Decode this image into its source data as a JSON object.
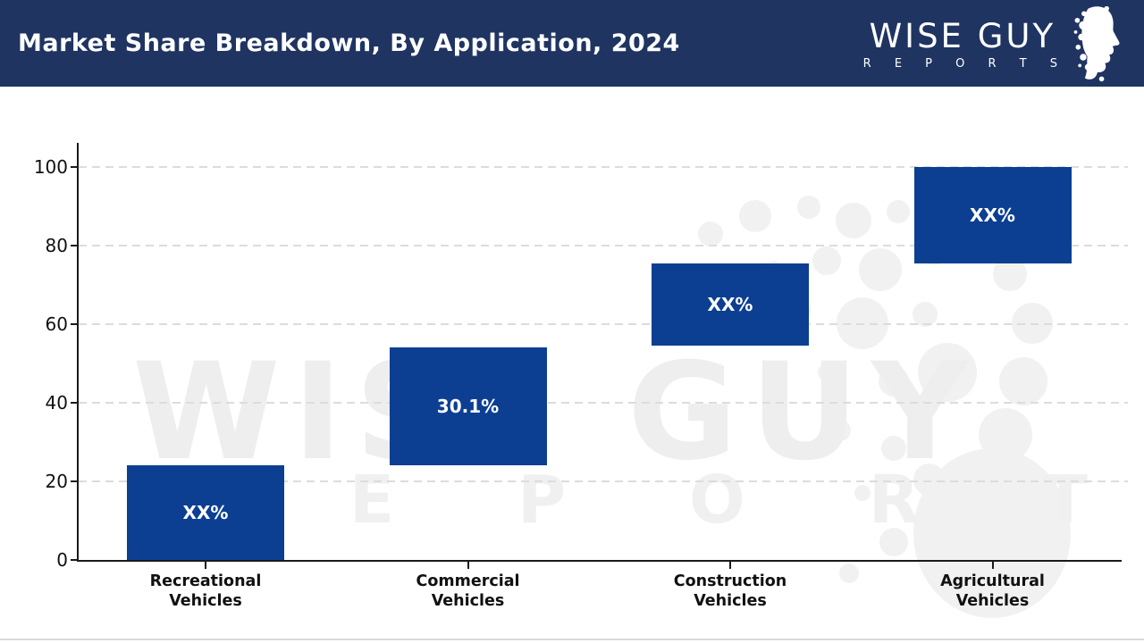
{
  "header": {
    "title": "Market Share Breakdown, By Application, 2024",
    "logo": {
      "line1": "WISE GUY",
      "line2": "R E P O R T S"
    },
    "bg_color": "#1F3461",
    "text_color": "#FFFFFF"
  },
  "watermark": {
    "line1": "WISE GUY",
    "line2": "R E P O R T S"
  },
  "chart_data": {
    "type": "bar",
    "subtype": "floating-waterfall",
    "title": "Market Share Breakdown, By Application, 2024",
    "xlabel": "",
    "ylabel": "",
    "ylim": [
      0,
      106
    ],
    "yticks": [
      0,
      20,
      40,
      60,
      80,
      100
    ],
    "grid": "horizontal-dashed",
    "legend": "none",
    "bar_color": "#0C3F92",
    "bar_label_color": "#FFFFFF",
    "axis_color": "#1a1a1a",
    "categories": [
      "Recreational Vehicles",
      "Commercial Vehicles",
      "Construction Vehicles",
      "Agricultural Vehicles"
    ],
    "bars": [
      {
        "category_line1": "Recreational",
        "category_line2": "Vehicles",
        "base": 0,
        "top": 24.1,
        "label": "XX%"
      },
      {
        "category_line1": "Commercial",
        "category_line2": "Vehicles",
        "base": 24.1,
        "top": 54.2,
        "label": "30.1%"
      },
      {
        "category_line1": "Construction",
        "category_line2": "Vehicles",
        "base": 54.5,
        "top": 75.5,
        "label": "XX%"
      },
      {
        "category_line1": "Agricultural",
        "category_line2": "Vehicles",
        "base": 75.5,
        "top": 100,
        "label": "XX%"
      }
    ]
  }
}
